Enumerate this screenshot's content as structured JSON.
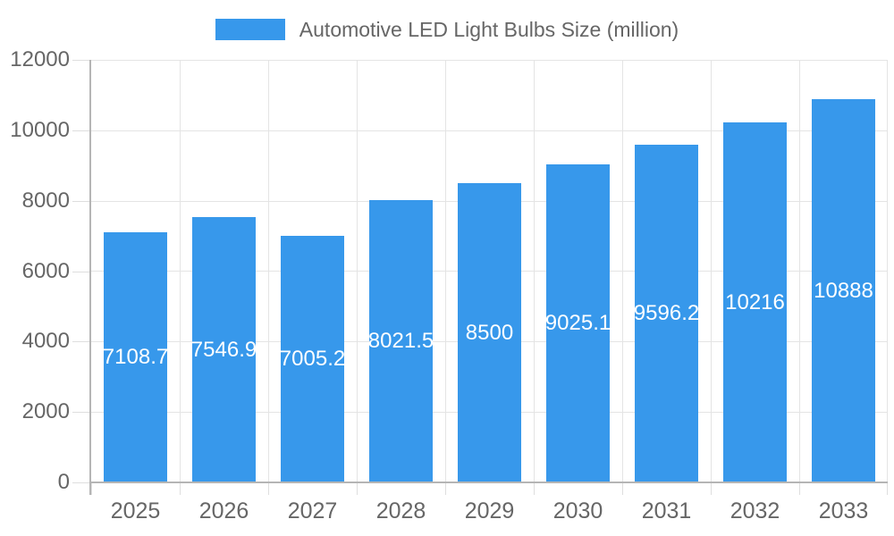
{
  "legend": {
    "label": "Automotive LED Light Bulbs Size (million)"
  },
  "colors": {
    "bar": "#3798EB",
    "axis_text": "#666666",
    "grid": "#e4e4e4",
    "tick": "#dedede",
    "axis_line": "#b5b5b5",
    "bar_label_text": "#ffffff"
  },
  "chart_data": {
    "type": "bar",
    "title": "Automotive LED Light Bulbs Size (million)",
    "categories": [
      "2025",
      "2026",
      "2027",
      "2028",
      "2029",
      "2030",
      "2031",
      "2032",
      "2033"
    ],
    "values": [
      7108.7,
      7546.9,
      7005.2,
      8021.5,
      8500,
      9025.1,
      9596.2,
      10216,
      10888
    ],
    "value_labels": [
      "7108.7",
      "7546.9",
      "7005.2",
      "8021.5",
      "8500",
      "9025.1",
      "9596.2",
      "10216",
      "10888"
    ],
    "xlabel": "",
    "ylabel": "",
    "ylim": [
      0,
      12000
    ],
    "y_ticks": [
      0,
      2000,
      4000,
      6000,
      8000,
      10000,
      12000
    ],
    "grid": true,
    "legend_position": "top",
    "value_labels_position": "center-inside",
    "series_name": "Automotive LED Light Bulbs Size (million)"
  }
}
